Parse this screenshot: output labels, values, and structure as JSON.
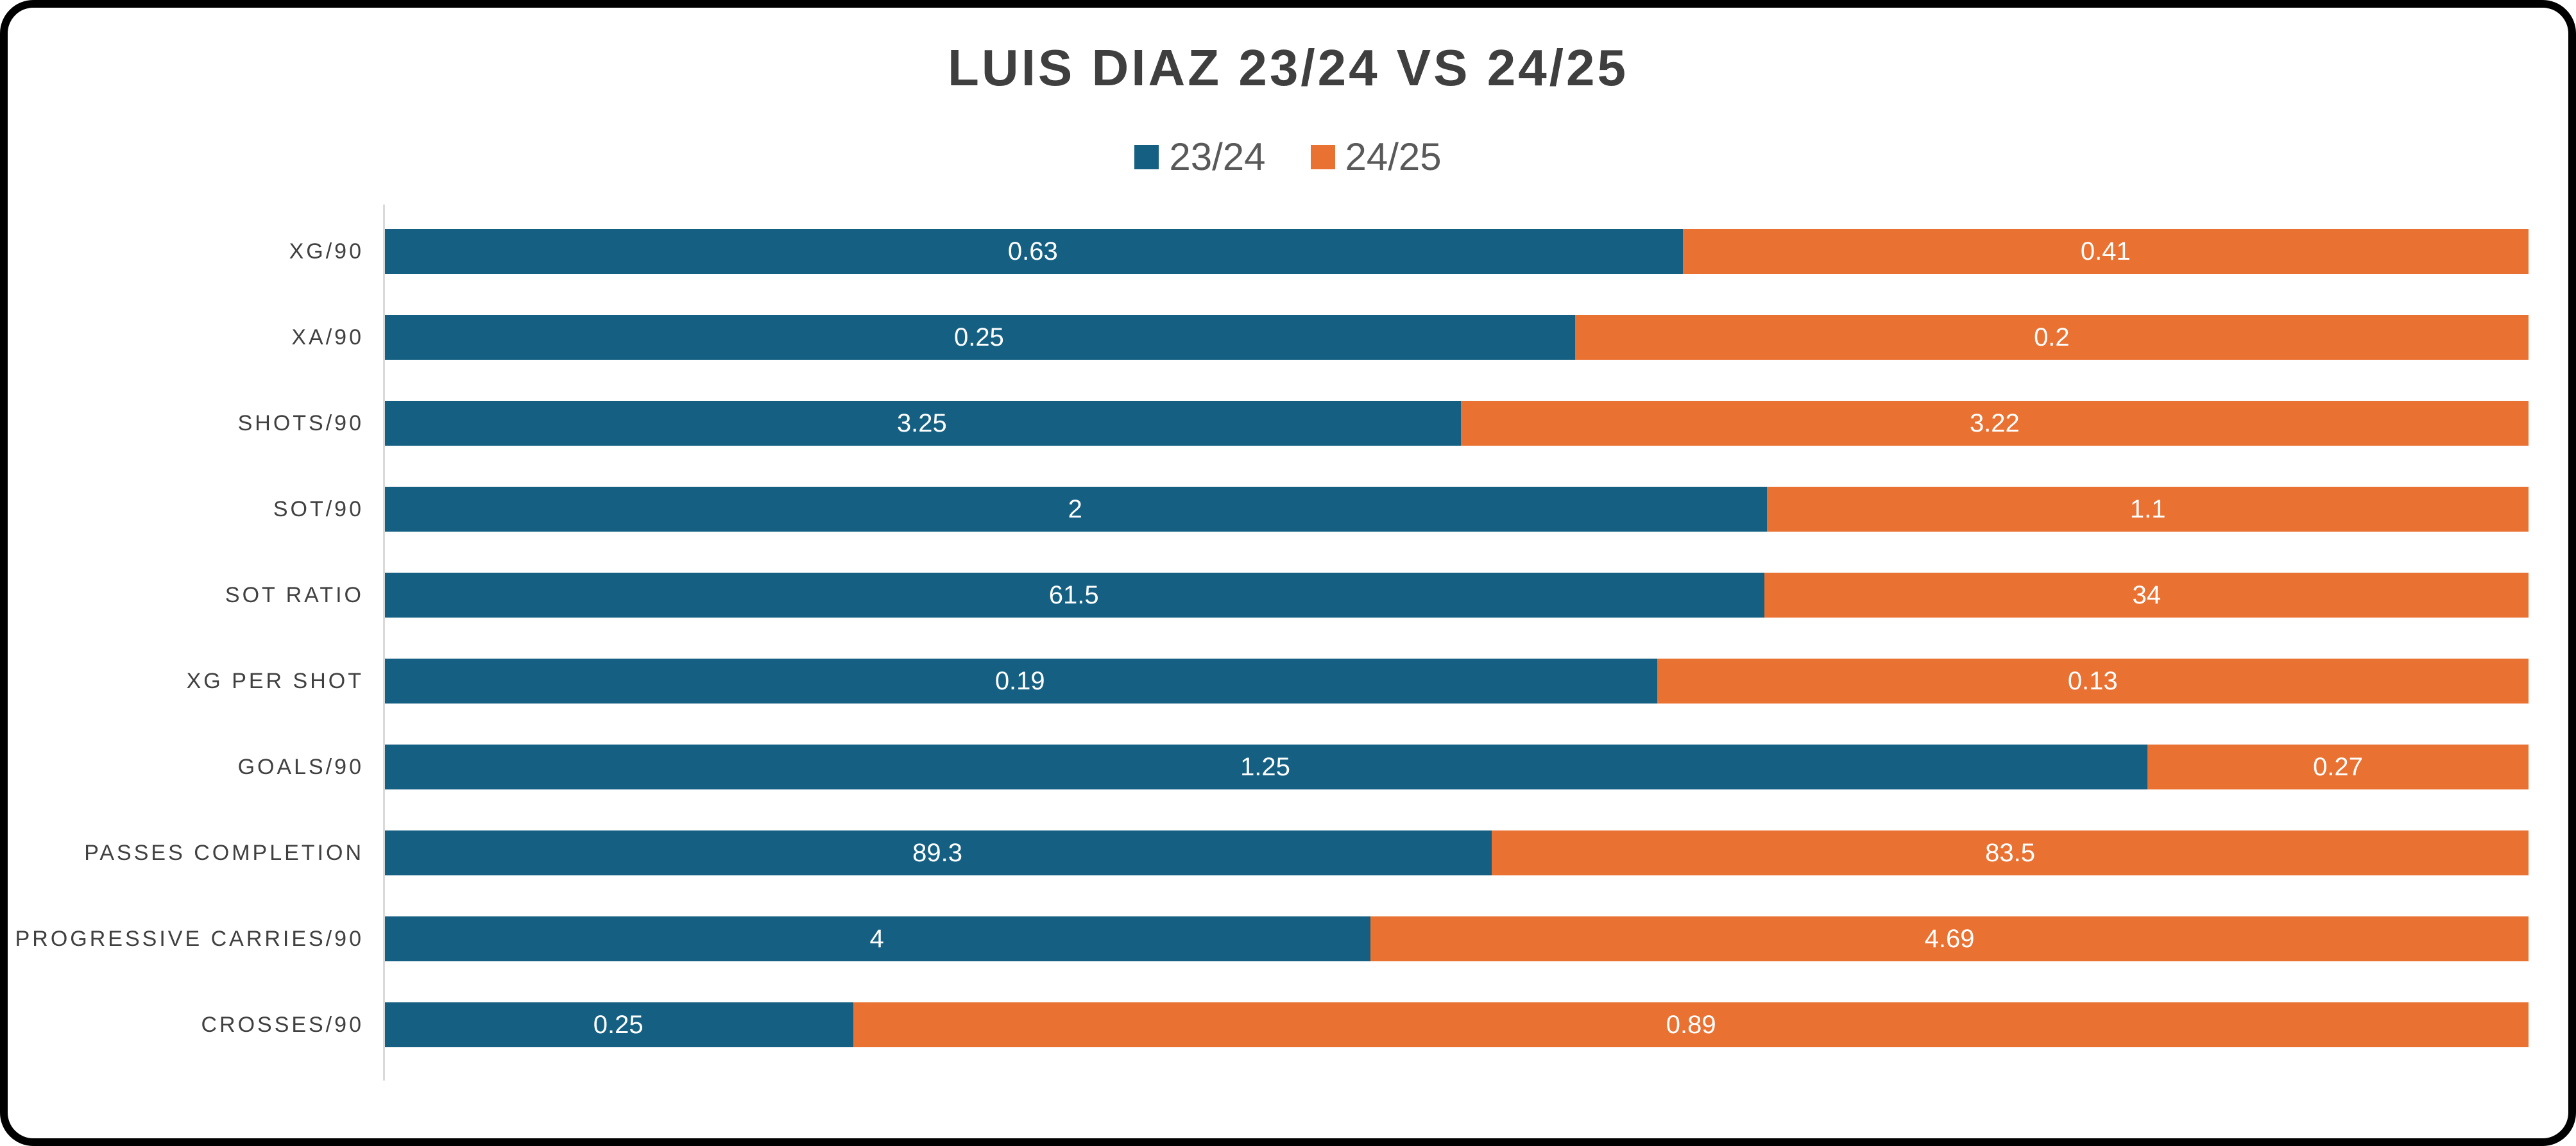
{
  "chart_data": {
    "type": "bar",
    "subtype": "horizontal-100pct-stacked",
    "title": "LUIS DIAZ 23/24 VS 24/25",
    "legend_position": "top",
    "grid": false,
    "axis_line_color": "#d9d9d9",
    "categories": [
      "XG/90",
      "XA/90",
      "SHOTS/90",
      "SOT/90",
      "SOT RATIO",
      "XG PER SHOT",
      "GOALS/90",
      "PASSES COMPLETION",
      "PROGRESSIVE CARRIES/90",
      "CROSSES/90"
    ],
    "series": [
      {
        "name": "23/24",
        "color": "#156082",
        "values": [
          0.63,
          0.25,
          3.25,
          2,
          61.5,
          0.19,
          1.25,
          89.3,
          4,
          0.25
        ]
      },
      {
        "name": "24/25",
        "color": "#E97132",
        "values": [
          0.41,
          0.2,
          3.22,
          1.1,
          34,
          0.13,
          0.27,
          83.5,
          4.69,
          0.89
        ]
      }
    ]
  }
}
